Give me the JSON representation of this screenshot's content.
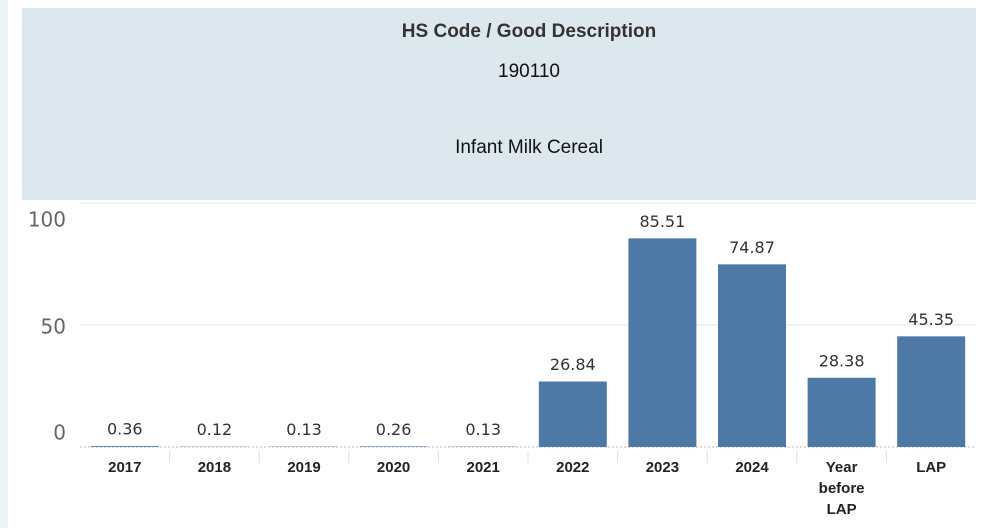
{
  "chart_data": {
    "type": "bar",
    "header": {
      "title": "HS Code / Good Description",
      "code": "190110",
      "description": "Infant Milk Cereal"
    },
    "categories": [
      "2017",
      "2018",
      "2019",
      "2020",
      "2021",
      "2022",
      "2023",
      "2024",
      "Year before LAP",
      "LAP"
    ],
    "values": [
      0.36,
      0.12,
      0.13,
      0.26,
      0.13,
      26.84,
      85.51,
      74.87,
      28.38,
      45.35
    ],
    "color": "#4e79a7",
    "ylim": [
      0,
      100
    ],
    "yticks": [
      0,
      50,
      100
    ],
    "grid": true
  }
}
